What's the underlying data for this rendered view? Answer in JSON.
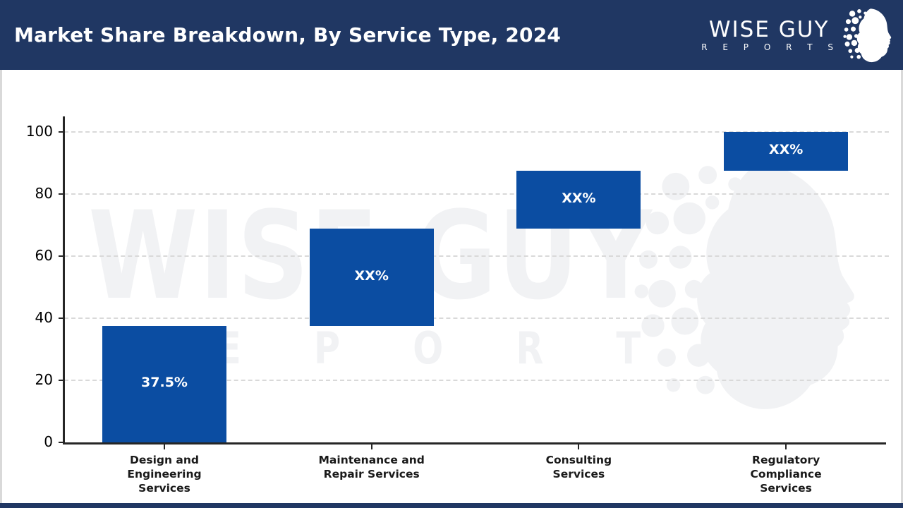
{
  "header": {
    "title": "Market Share Breakdown, By Service Type, 2024",
    "logo": {
      "wordmark": "WISE GUY",
      "subtitle": "R E P O R T S"
    }
  },
  "watermark": {
    "line1": "WISE GUY",
    "line2": "R E P O R T S"
  },
  "colors": {
    "header_bg": "#203763",
    "footer_bg": "#203763",
    "bar": "#0B4DA2",
    "grid": "#D9D9D9",
    "axis": "#262626",
    "watermark": "#F1F2F4",
    "title_text": "#FFFFFF",
    "category_text": "#1A1A1A"
  },
  "chart_data": {
    "type": "bar",
    "subtype": "waterfall",
    "title": "Market Share Breakdown, By Service Type, 2024",
    "xlabel": "",
    "ylabel": "",
    "ylim": [
      0,
      105
    ],
    "yticks": [
      0,
      20,
      40,
      60,
      80,
      100
    ],
    "grid": true,
    "legend": "none",
    "bar_color": "#0B4DA2",
    "categories": [
      "Design and Engineering Services",
      "Maintenance and Repair Services",
      "Consulting Services",
      "Regulatory Compliance Services"
    ],
    "category_lines": [
      [
        "Design and",
        "Engineering",
        "Services"
      ],
      [
        "Maintenance and",
        "Repair Services"
      ],
      [
        "Consulting",
        "Services"
      ],
      [
        "Regulatory",
        "Compliance",
        "Services"
      ]
    ],
    "segments": [
      {
        "category": "Design and Engineering Services",
        "start": 0,
        "end": 37.5,
        "value": 37.5,
        "label": "37.5%"
      },
      {
        "category": "Maintenance and Repair Services",
        "start": 37.5,
        "end": 68.75,
        "value": 31.25,
        "label": "XX%"
      },
      {
        "category": "Consulting Services",
        "start": 68.75,
        "end": 87.5,
        "value": 18.75,
        "label": "XX%"
      },
      {
        "category": "Regulatory Compliance Services",
        "start": 87.5,
        "end": 100,
        "value": 12.5,
        "label": "XX%"
      }
    ]
  }
}
